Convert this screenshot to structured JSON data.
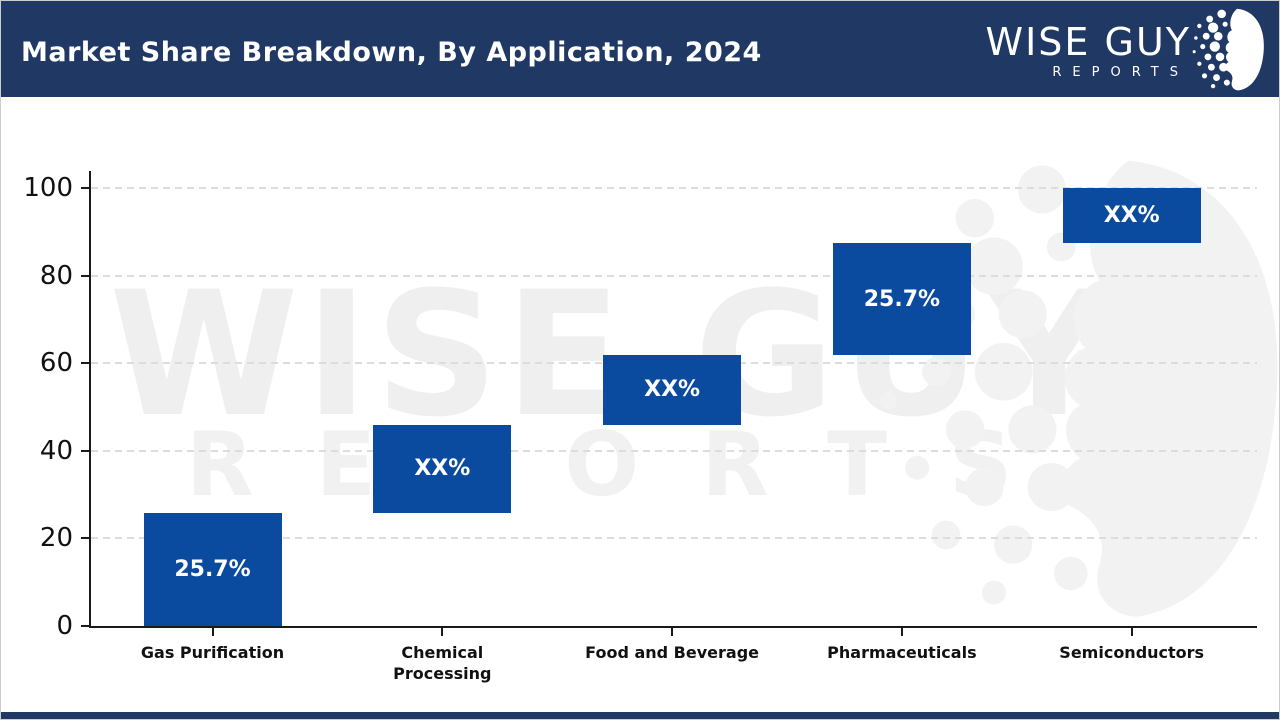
{
  "header": {
    "title": "Market Share Breakdown, By Application, 2024",
    "bg_color": "#1f3864",
    "logo": {
      "line1": "WISE GUY",
      "line2": "REPORTS"
    }
  },
  "watermark": {
    "line1": "WISE GUY",
    "line2": "REPORTS"
  },
  "chart_data": {
    "type": "bar",
    "subtype": "waterfall",
    "title": "Market Share Breakdown, By Application, 2024",
    "categories": [
      "Gas Purification",
      "Chemical\nProcessing",
      "Food and Beverage",
      "Pharmaceuticals",
      "Semiconductors"
    ],
    "segments": [
      {
        "category": "Gas Purification",
        "start": 0,
        "end": 25.7,
        "label": "25.7%"
      },
      {
        "category": "Chemical Processing",
        "start": 25.7,
        "end": 46,
        "label": "XX%"
      },
      {
        "category": "Food and Beverage",
        "start": 46,
        "end": 61.8,
        "label": "XX%"
      },
      {
        "category": "Pharmaceuticals",
        "start": 61.8,
        "end": 87.5,
        "label": "25.7%"
      },
      {
        "category": "Semiconductors",
        "start": 87.5,
        "end": 100,
        "label": "XX%"
      }
    ],
    "y_ticks": [
      0,
      20,
      40,
      60,
      80,
      100
    ],
    "ylim": [
      0,
      104
    ],
    "xlabel": "",
    "ylabel": "",
    "grid": "dashed-horizontal",
    "legend": "none",
    "bar_color": "#0a4b9f",
    "value_label_color": "#ffffff"
  }
}
